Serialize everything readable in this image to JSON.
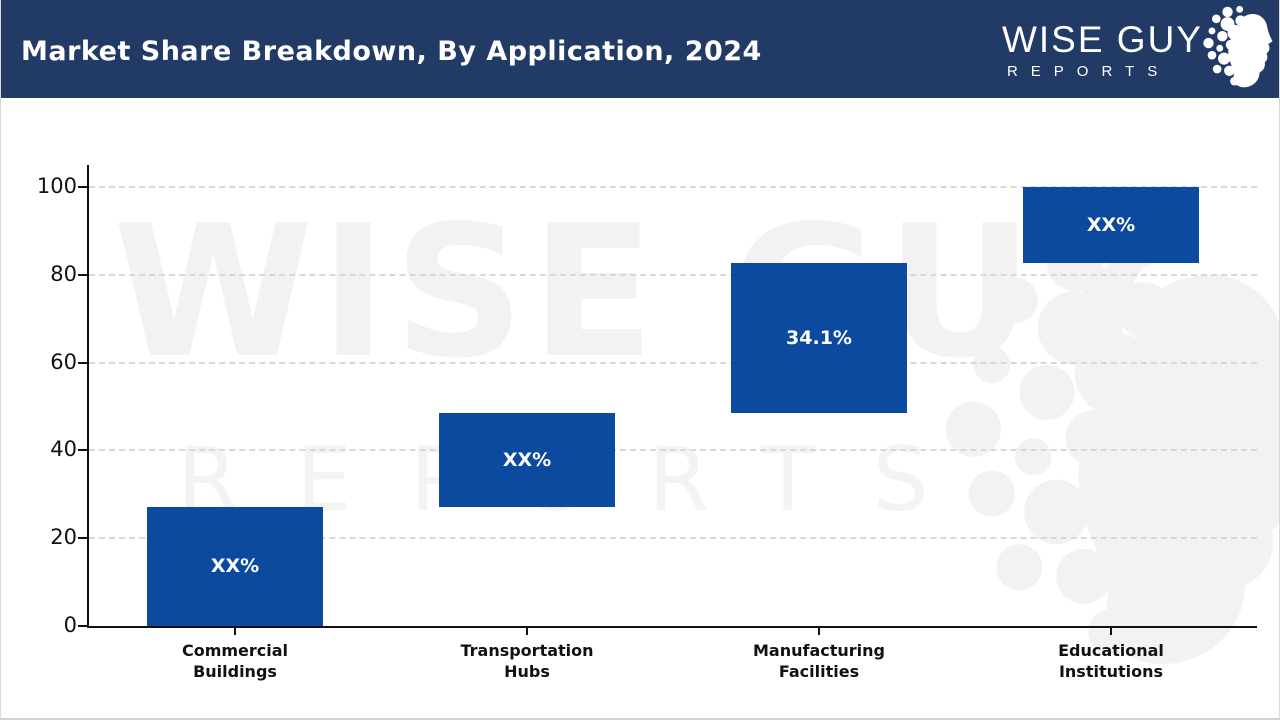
{
  "header": {
    "title": "Market Share Breakdown, By Application, 2024",
    "logo": {
      "line1": "WISE GUY",
      "line2": "REPORTS"
    }
  },
  "watermark": {
    "line1": "WISE GUY",
    "line2": "REPORTS"
  },
  "chart_data": {
    "type": "bar",
    "variant": "waterfall",
    "title": "Market Share Breakdown, By Application, 2024",
    "categories": [
      "Commercial Buildings",
      "Transportation Hubs",
      "Manufacturing Facilities",
      "Educational Institutions"
    ],
    "category_lines": [
      [
        "Commercial",
        "Buildings"
      ],
      [
        "Transportation",
        "Hubs"
      ],
      [
        "Manufacturing",
        "Facilities"
      ],
      [
        "Educational",
        "Institutions"
      ]
    ],
    "segments": [
      {
        "category": "Commercial Buildings",
        "start": 0,
        "end": 27.2,
        "value": 27.2,
        "label": "XX%"
      },
      {
        "category": "Transportation Hubs",
        "start": 27.2,
        "end": 48.5,
        "value": 21.3,
        "label": "XX%"
      },
      {
        "category": "Manufacturing Facilities",
        "start": 48.5,
        "end": 82.6,
        "value": 34.1,
        "label": "34.1%"
      },
      {
        "category": "Educational Institutions",
        "start": 82.6,
        "end": 100,
        "value": 17.4,
        "label": "XX%"
      }
    ],
    "xlabel": "",
    "ylabel": "",
    "yticks": [
      0,
      20,
      40,
      60,
      80,
      100
    ],
    "ylim": [
      0,
      100
    ],
    "grid": "horizontal-dashed",
    "legend": "none",
    "bar_color": "#0b4a9f",
    "bar_label_color": "#ffffff",
    "header_color": "#213a66",
    "gridline_color": "#d8d8d8",
    "axis_color": "#111111",
    "watermark_color": "#f2f2f2"
  }
}
